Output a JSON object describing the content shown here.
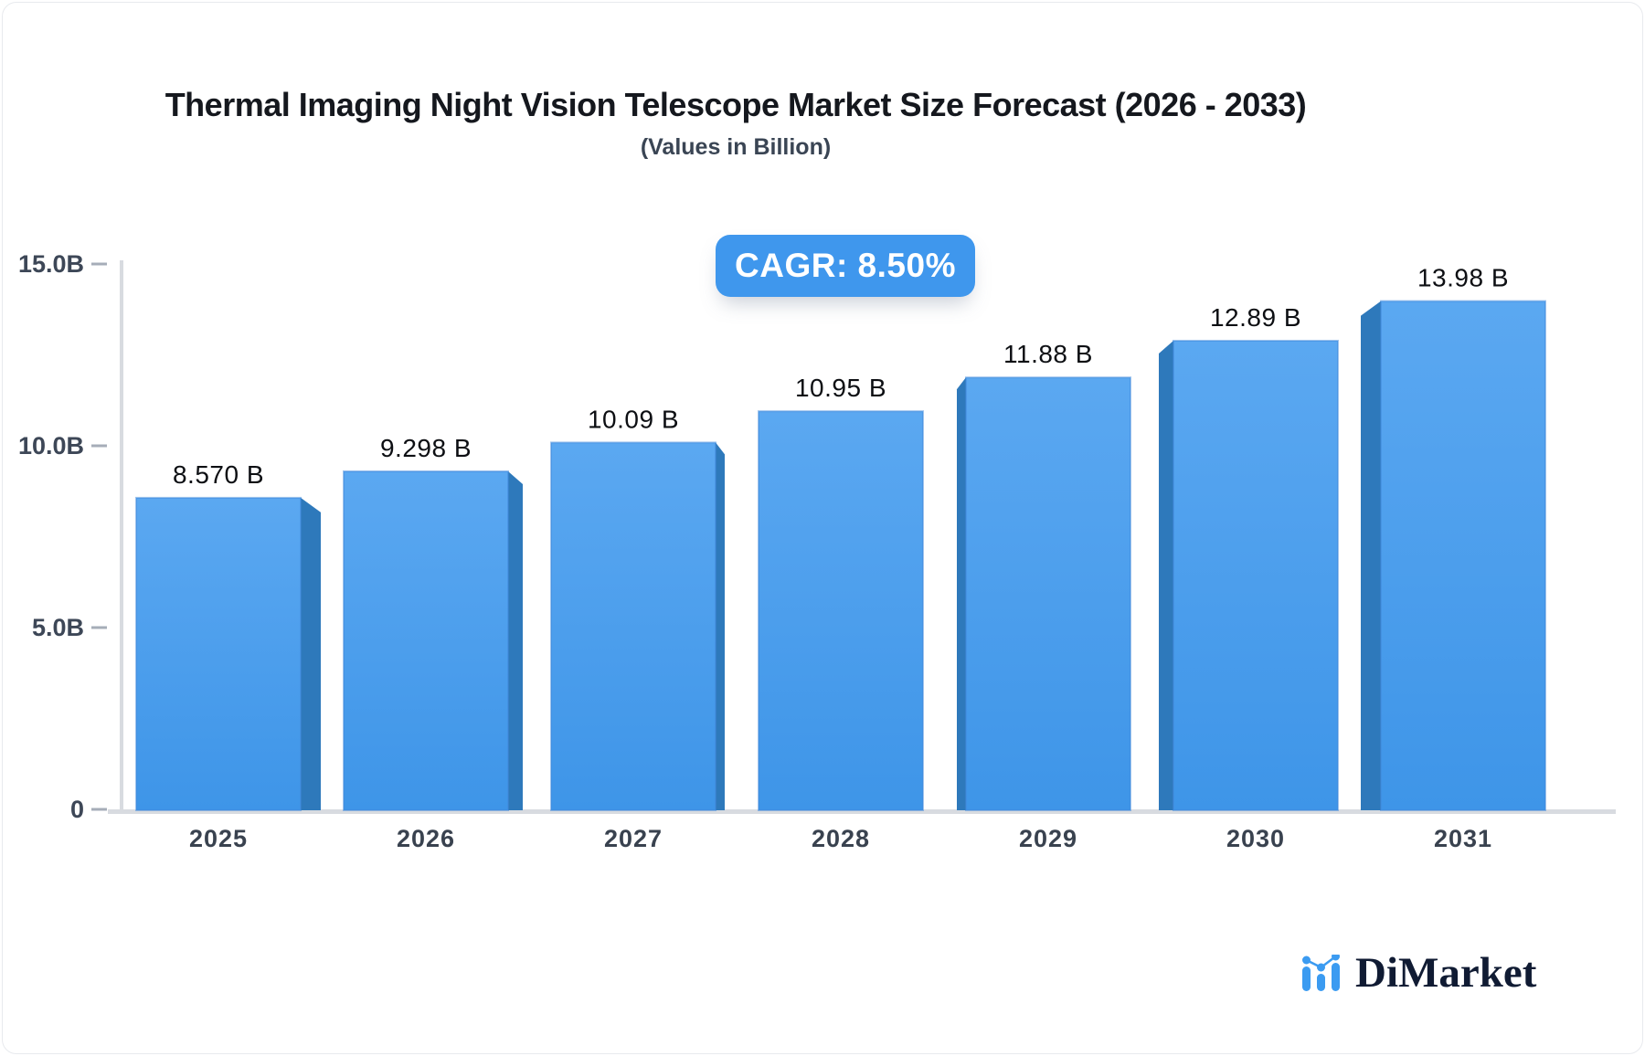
{
  "chart_data": {
    "type": "bar",
    "title": "Thermal Imaging Night Vision Telescope Market Size Forecast (2026 - 2033)",
    "subtitle": "(Values in Billion)",
    "cagr_label": "CAGR: 8.50%",
    "categories": [
      "2025",
      "2026",
      "2027",
      "2028",
      "2029",
      "2030",
      "2031"
    ],
    "values": [
      8.57,
      9.298,
      10.09,
      10.95,
      11.88,
      12.89,
      13.98
    ],
    "value_labels": [
      "8.570 B",
      "9.298 B",
      "10.09 B",
      "10.95 B",
      "11.88 B",
      "12.89 B",
      "13.98 B"
    ],
    "ylim": [
      0,
      15
    ],
    "yticks": [
      {
        "v": 0,
        "label": "0"
      },
      {
        "v": 5,
        "label": "5.0B"
      },
      {
        "v": 10,
        "label": "10.0B"
      },
      {
        "v": 15,
        "label": "15.0B"
      }
    ],
    "grid": false,
    "legend": false,
    "bar_style": "3d-perspective",
    "colors": {
      "bar_top": "#5BA8F1",
      "bar_bottom": "#3E95E8",
      "bar_side": "#2E79BB",
      "bar_border": "#3F87DA",
      "axis_line": "#D8DBE0",
      "tick_dash": "#A6ADB8",
      "tick_label": "#3D4757",
      "category_label": "#39424F",
      "value_label": "#0D0F13",
      "badge_bg": "#3F97ED",
      "badge_text": "#FFFFFF",
      "logo_blue": "#3B9BF1",
      "logo_navy": "#101B33"
    }
  },
  "logo": {
    "brand": "DiMarket",
    "icon": "mini-bar-chart-logo-icon"
  }
}
